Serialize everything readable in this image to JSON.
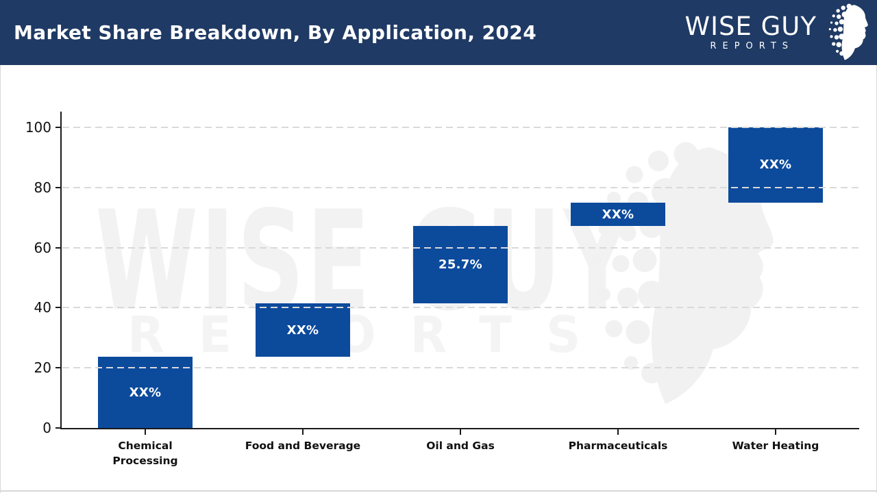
{
  "header": {
    "title": "Market Share Breakdown, By Application, 2024",
    "logo": {
      "line1": "WISE GUY",
      "line2": "REPORTS"
    }
  },
  "watermark": {
    "line1": "WISE GUY",
    "line2": "REPORTS"
  },
  "colors": {
    "header_bg": "#1f3a64",
    "bar_blue": "#0c4a9c",
    "grid_gray": "#d9d9d9",
    "axis_black": "#1a1a1a",
    "watermark_gray": "#f2f2f2"
  },
  "chart_data": {
    "type": "bar",
    "subtype": "waterfall",
    "title": "Market Share Breakdown, By Application, 2024",
    "xlabel": "",
    "ylabel": "",
    "categories": [
      "Chemical\nProcessing",
      "Food and Beverage",
      "Oil and Gas",
      "Pharmaceuticals",
      "Water Heating"
    ],
    "segments": [
      {
        "from": 0,
        "to": 23.6,
        "label": "XX%"
      },
      {
        "from": 23.6,
        "to": 41.4,
        "label": "XX%"
      },
      {
        "from": 41.4,
        "to": 67.1,
        "label": "25.7%"
      },
      {
        "from": 67.1,
        "to": 74.9,
        "label": "XX%"
      },
      {
        "from": 74.9,
        "to": 100,
        "label": "XX%"
      }
    ],
    "yticks": [
      0,
      20,
      40,
      60,
      80,
      100
    ],
    "ylim": [
      0,
      105.2
    ],
    "grid": "horizontal-dashed-over-bars",
    "legend": "none"
  }
}
